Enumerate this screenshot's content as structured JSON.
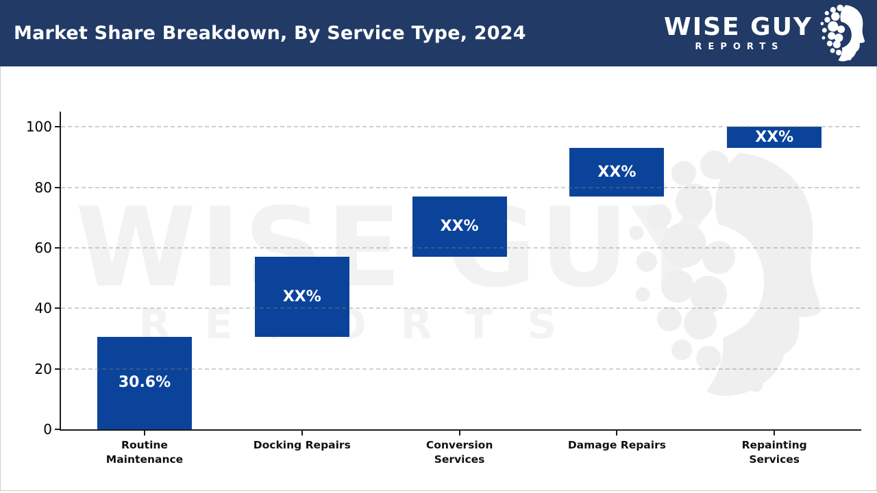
{
  "header": {
    "title": "Market Share Breakdown, By Service Type, 2024",
    "bg_color": "#213a66",
    "logo": {
      "line1": "WISE GUY",
      "line2": "REPORTS"
    }
  },
  "watermark": {
    "line1": "WISE GUY",
    "line2": "REPORTS"
  },
  "chart_data": {
    "type": "bar",
    "subtype": "waterfall",
    "title": "Market Share Breakdown, By Service Type, 2024",
    "categories": [
      "Routine Maintenance",
      "Docking Repairs",
      "Conversion Services",
      "Damage Repairs",
      "Repainting Services"
    ],
    "segments": [
      {
        "category": "Routine Maintenance",
        "start": 0,
        "end": 30.6,
        "label": "30.6%"
      },
      {
        "category": "Docking Repairs",
        "start": 30.6,
        "end": 57,
        "label": "XX%"
      },
      {
        "category": "Conversion Services",
        "start": 57,
        "end": 77,
        "label": "XX%"
      },
      {
        "category": "Damage Repairs",
        "start": 77,
        "end": 93,
        "label": "XX%"
      },
      {
        "category": "Repainting Services",
        "start": 93,
        "end": 100,
        "label": "XX%"
      }
    ],
    "xlabel": "",
    "ylabel": "",
    "ylim": [
      0,
      105
    ],
    "yticks": [
      0,
      20,
      40,
      60,
      80,
      100
    ],
    "grid": "horizontal-dashed",
    "legend": "none",
    "bar_color": "#0b439a",
    "bar_label_color": "#ffffff"
  }
}
